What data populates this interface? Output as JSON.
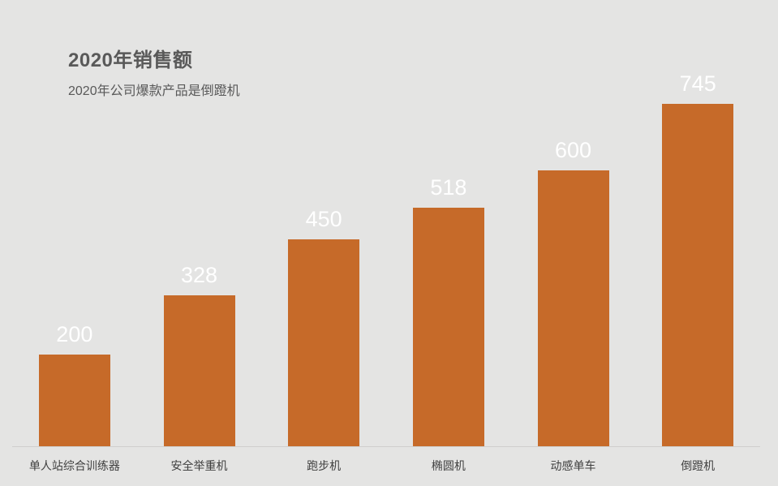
{
  "page": {
    "background_color": "#E4E4E3"
  },
  "header": {
    "title": "2020年销售额",
    "subtitle": "2020年公司爆款产品是倒蹬机"
  },
  "chart_data": {
    "type": "bar",
    "title": "2020年销售额",
    "subtitle": "2020年公司爆款产品是倒蹬机",
    "categories": [
      "单人站综合训练器",
      "安全举重机",
      "跑步机",
      "椭圆机",
      "动感单车",
      "倒蹬机"
    ],
    "values": [
      200,
      328,
      450,
      518,
      600,
      745
    ],
    "series": [
      {
        "name": "2020年销售额",
        "values": [
          200,
          328,
          450,
          518,
          600,
          745
        ]
      }
    ],
    "xlabel": "",
    "ylabel": "",
    "ylim": [
      0,
      780
    ],
    "grid": false,
    "legend": false,
    "data_labels_position": "above-bars",
    "colors": {
      "bar": "#C66A29",
      "value_label": "#FFFFFF",
      "category_label": "#3F3F3F",
      "title": "#595959",
      "axis_line": "#CFCECD",
      "background": "#E4E4E3"
    }
  }
}
